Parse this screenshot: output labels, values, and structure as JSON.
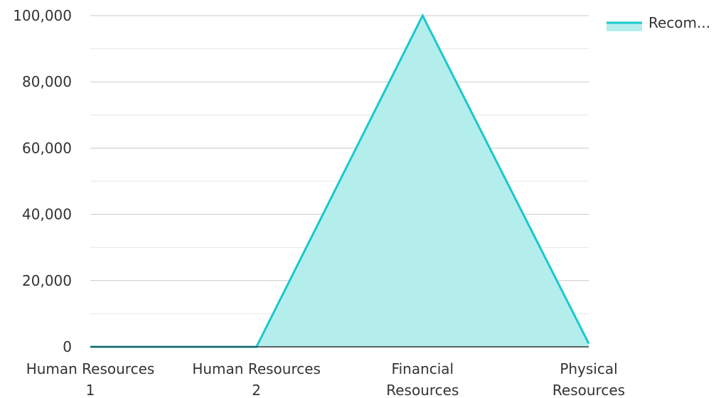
{
  "chart_data": {
    "type": "area",
    "categories": [
      [
        "Human Resources",
        "1"
      ],
      [
        "Human Resources",
        "2"
      ],
      [
        "Financial",
        "Resources"
      ],
      [
        "Physical",
        "Resources"
      ]
    ],
    "series": [
      {
        "name": "Recom...",
        "values": [
          0,
          0,
          100000,
          1000
        ],
        "color": "#1ac8cc",
        "fill": "#b3eeed"
      }
    ],
    "ylim": [
      0,
      100000
    ],
    "yticks": [
      0,
      20000,
      40000,
      60000,
      80000,
      100000
    ],
    "ytick_labels": [
      "0",
      "20,000",
      "40,000",
      "60,000",
      "80,000",
      "100,000"
    ],
    "grid": true,
    "legend_position": "top-right",
    "title": "",
    "xlabel": "",
    "ylabel": ""
  }
}
